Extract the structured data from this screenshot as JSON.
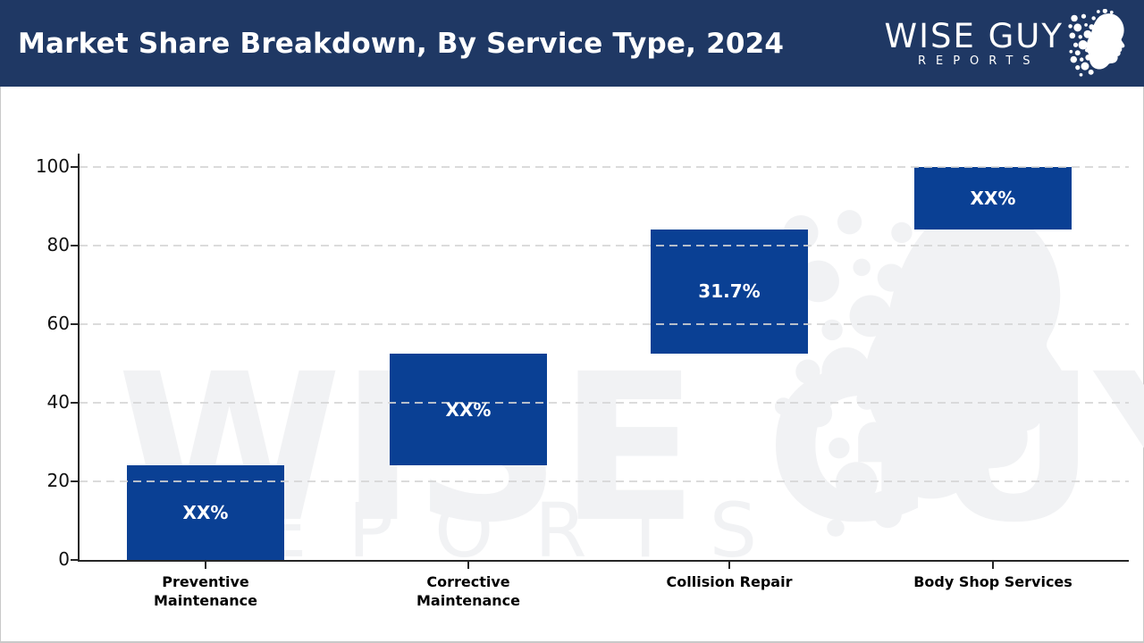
{
  "header": {
    "title": "Market Share Breakdown, By Service Type, 2024",
    "brand": {
      "name": "WISE GUY",
      "tagline": "REPORTS"
    }
  },
  "watermark": {
    "line1": "WISE GUY",
    "line2": "REPORTS"
  },
  "chart_data": {
    "type": "bar",
    "subtype": "floating-segment-waterfall",
    "title": "Market Share Breakdown, By Service Type, 2024",
    "categories": [
      "Preventive Maintenance",
      "Corrective Maintenance",
      "Collision Repair",
      "Body Shop Services"
    ],
    "category_lines": [
      [
        "Preventive",
        "Maintenance"
      ],
      [
        "Corrective",
        "Maintenance"
      ],
      [
        "Collision Repair"
      ],
      [
        "Body Shop Services"
      ]
    ],
    "segments": [
      {
        "category": "Preventive Maintenance",
        "start": 0,
        "end": 24,
        "height": 24,
        "label": "XX%"
      },
      {
        "category": "Corrective Maintenance",
        "start": 24,
        "end": 52.5,
        "height": 28.5,
        "label": "XX%"
      },
      {
        "category": "Collision Repair",
        "start": 52.5,
        "end": 84.2,
        "height": 31.7,
        "label": "31.7%"
      },
      {
        "category": "Body Shop Services",
        "start": 84.2,
        "end": 100,
        "height": 15.8,
        "label": "XX%"
      }
    ],
    "xlabel": "",
    "ylabel": "",
    "ylim": [
      0,
      100
    ],
    "yticks": [
      0,
      20,
      40,
      60,
      80,
      100
    ],
    "grid": "horizontal-dashed-over-bars",
    "legend": "none",
    "bar_color": "#0a4094",
    "bar_label_color": "#ffffff"
  },
  "colors": {
    "header_bg": "#1f3864",
    "bar": "#0a4094",
    "watermark": "#f1f2f4",
    "gridline": "#d5d5d5",
    "axis": "#262626",
    "title_text": "#ffffff",
    "body_border": "#c9c9c9"
  }
}
